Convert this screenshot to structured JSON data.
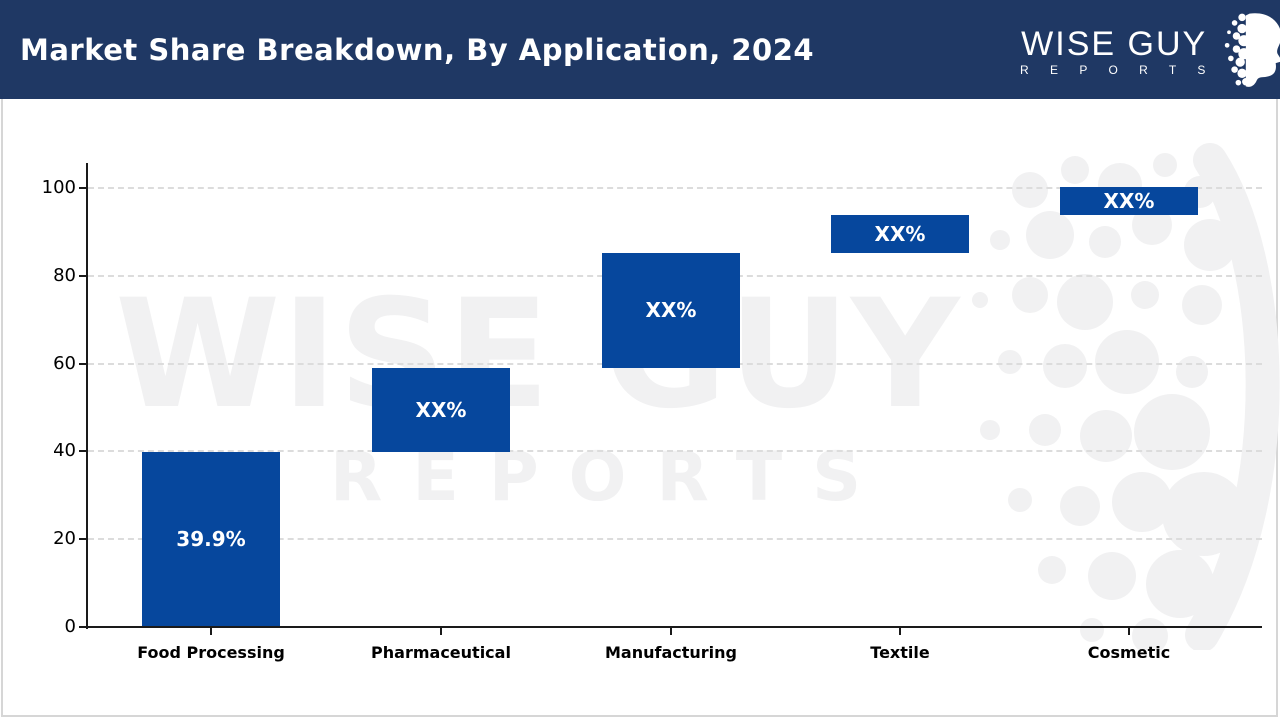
{
  "header": {
    "title": "Market Share Breakdown, By Application, 2024",
    "bg_color": "#1f3864",
    "logo": {
      "line1": "WISE GUY",
      "line2": "R E P O R T S"
    }
  },
  "watermark": {
    "line1": "WISE GUY",
    "line2": "REPORTS"
  },
  "chart_data": {
    "type": "bar",
    "subtype": "waterfall",
    "title": "Market Share Breakdown, By Application, 2024",
    "xlabel": "",
    "ylabel": "",
    "categories": [
      "Food Processing",
      "Pharmaceutical",
      "Manufacturing",
      "Textile",
      "Cosmetic"
    ],
    "segments": [
      {
        "category": "Food Processing",
        "start": 0,
        "end": 39.9,
        "value": 39.9,
        "label": "39.9%"
      },
      {
        "category": "Pharmaceutical",
        "start": 39.9,
        "end": 59.1,
        "value": 19.2,
        "label": "XX%"
      },
      {
        "category": "Manufacturing",
        "start": 59.1,
        "end": 85.2,
        "value": 26.1,
        "label": "XX%"
      },
      {
        "category": "Textile",
        "start": 85.2,
        "end": 93.9,
        "value": 8.7,
        "label": "XX%"
      },
      {
        "category": "Cosmetic",
        "start": 93.9,
        "end": 100.3,
        "value": 6.4,
        "label": "XX%"
      }
    ],
    "y_ticks": [
      0,
      20,
      40,
      60,
      80,
      100
    ],
    "ylim": [
      0,
      105.7
    ],
    "grid": "horizontal-dashed",
    "legend": "none",
    "bar_color": "#06479d",
    "bar_label_color": "#ffffff",
    "axis_color": "#1a1a1a",
    "gridline_color": "#dcdcdc"
  }
}
